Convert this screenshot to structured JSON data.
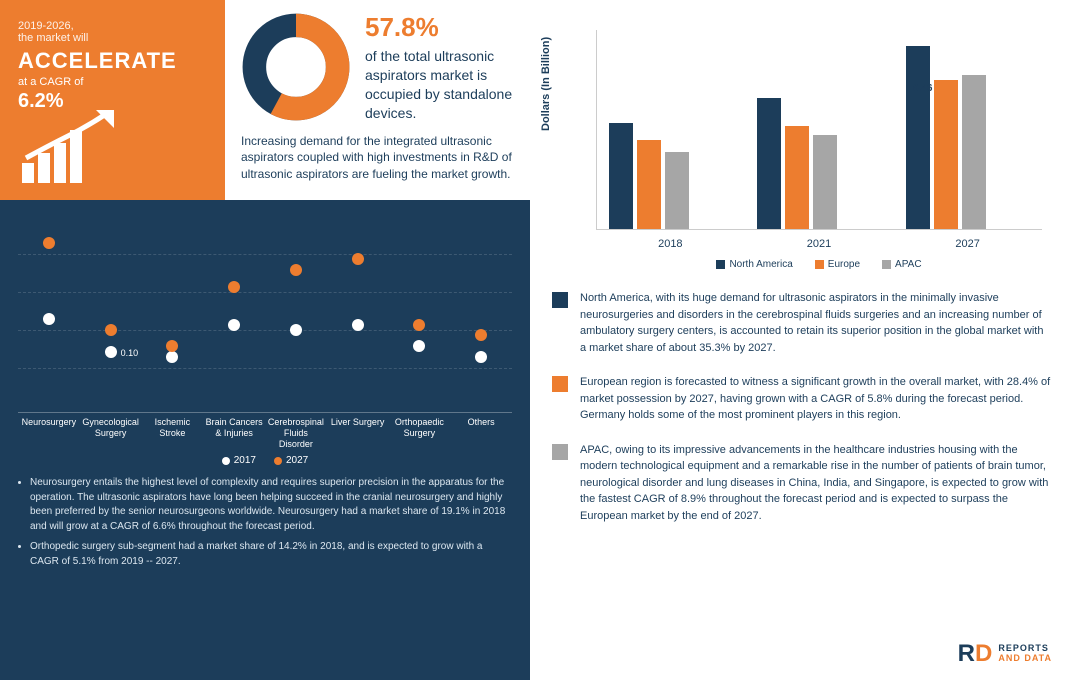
{
  "colors": {
    "orange": "#ed7d2f",
    "navy": "#1c3d5a",
    "gray": "#a6a6a6",
    "white": "#ffffff"
  },
  "accel": {
    "period": "2019-2026,",
    "pre": "the market will",
    "word": "ACCELERATE",
    "cagr_pre": "at a CAGR of",
    "pct": "6.2%"
  },
  "donut": {
    "pct": "57.8%",
    "pct_value": 57.8,
    "colors": {
      "main": "#ed7d2f",
      "rest": "#1c3d5a"
    },
    "text": "of the total ultrasonic aspirators market is occupied by standalone devices.",
    "sub": "Increasing demand for the integrated ultrasonic aspirators coupled with high investments in R&D of ultrasonic aspirators are fueling the market growth."
  },
  "scatter": {
    "categories": [
      "Neurosurgery",
      "Gynecological Surgery",
      "Ischemic Stroke",
      "Brain Cancers & Injuries",
      "Cerebrospinal Fluids Disorder",
      "Liver Surgery",
      "Orthopaedic Surgery",
      "Others"
    ],
    "series": [
      {
        "name": "2017",
        "color": "#ffffff",
        "values": [
          0.16,
          0.1,
          0.09,
          0.15,
          0.14,
          0.15,
          0.11,
          0.09
        ]
      },
      {
        "name": "2027",
        "color": "#ed7d2f",
        "values": [
          0.3,
          0.14,
          0.11,
          0.22,
          0.25,
          0.27,
          0.15,
          0.13
        ]
      }
    ],
    "ylim": [
      0,
      0.35
    ],
    "label_point": {
      "cat": 1,
      "series": 0,
      "text": "0.10"
    },
    "bullets": [
      "Neurosurgery entails the highest level of complexity and requires superior precision in the apparatus for the operation. The ultrasonic aspirators have long been helping succeed in the cranial neurosurgery and highly been preferred by the senior neurosurgeons worldwide. Neurosurgery had a market share of 19.1% in 2018 and will grow at a CAGR of 6.6% throughout the forecast period.",
      "Orthopedic surgery sub-segment had a market share of 14.2% in 2018, and is expected to grow with a CAGR of 5.1% from 2019 -- 2027."
    ]
  },
  "bars": {
    "y_label": "Dollars (In Billion)",
    "years": [
      "2018",
      "2021",
      "2027"
    ],
    "series": [
      {
        "name": "North America",
        "color": "#1c3d5a",
        "values": [
          0.37,
          0.46,
          0.64
        ]
      },
      {
        "name": "Europe",
        "color": "#ed7d2f",
        "values": [
          0.31,
          0.36,
          0.52
        ]
      },
      {
        "name": "APAC",
        "color": "#a6a6a6",
        "values": [
          0.27,
          0.33,
          0.54
        ]
      }
    ],
    "ylim": [
      0,
      0.7
    ],
    "callout": {
      "year": 1,
      "series": 0,
      "text": "0.46"
    }
  },
  "regions": [
    {
      "color": "#1c3d5a",
      "text": "North America, with its huge demand for ultrasonic aspirators in the minimally invasive neurosurgeries and disorders in the cerebrospinal fluids surgeries and an increasing number of ambulatory surgery centers, is accounted to retain its superior position in the global market with a market share of about 35.3% by 2027."
    },
    {
      "color": "#ed7d2f",
      "text": "European region is forecasted to witness a significant growth in the overall market, with 28.4% of market possession by 2027, having grown with a CAGR of 5.8% during the forecast period. Germany holds some of the most prominent players in this region."
    },
    {
      "color": "#a6a6a6",
      "text": "APAC, owing to its impressive advancements in the healthcare industries housing with the modern technological equipment and a remarkable rise in the number of patients of brain tumor, neurological disorder and lung diseases in China, India, and Singapore, is expected to grow with the fastest CAGR of 8.9% throughout the forecast period and is expected to surpass the European market by the end of 2027."
    }
  ],
  "logo": {
    "line1": "REPORTS",
    "line2": "AND DATA"
  }
}
